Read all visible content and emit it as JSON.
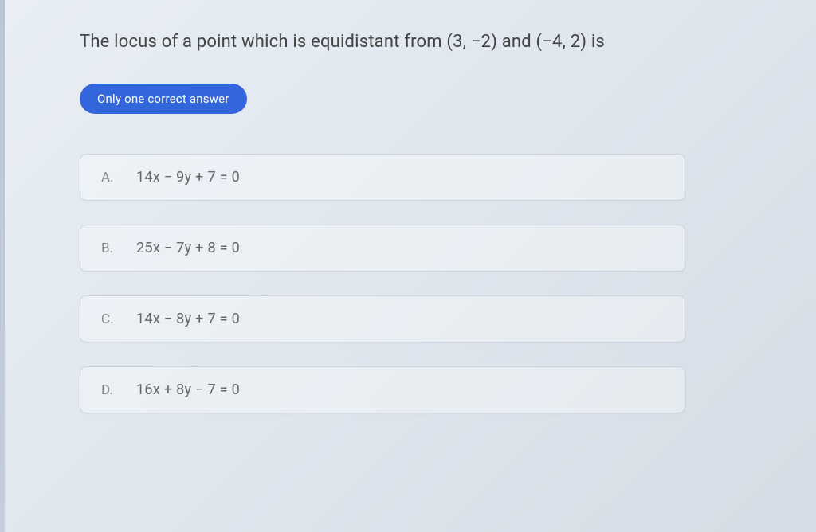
{
  "question": {
    "text": "The locus of a point which is equidistant from (3, −2) and (−4, 2) is"
  },
  "badge": {
    "label": "Only one correct answer"
  },
  "options": [
    {
      "letter": "A.",
      "text": "14x − 9y + 7 = 0"
    },
    {
      "letter": "B.",
      "text": "25x − 7y + 8 = 0"
    },
    {
      "letter": "C.",
      "text": "14x − 8y + 7 = 0"
    },
    {
      "letter": "D.",
      "text": "16x + 8y − 7 = 0"
    }
  ],
  "style": {
    "badge_bg": "#3366dd",
    "badge_fg": "#ffffff",
    "page_bg_start": "#e8eef4",
    "page_bg_end": "#d5dce5",
    "option_border": "rgba(180,190,205,0.6)",
    "option_bg": "rgba(255,255,255,0.35)",
    "question_fontsize": 22,
    "option_fontsize": 18,
    "badge_fontsize": 15
  }
}
